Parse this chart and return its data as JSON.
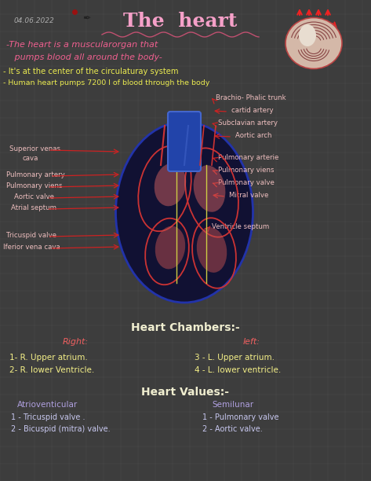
{
  "bg_color": "#3d3d3d",
  "grid_color": "#4a4a4a",
  "title": "The  heart",
  "date": "04.06.2022",
  "title_color": "#f5a0c8",
  "title_fontsize": 18,
  "pink_color": "#f06090",
  "yellow_color": "#eaea50",
  "red_color": "#cc2222",
  "light_pink": "#f0c0c0",
  "lavender": "#b0a0e0",
  "intro_line1": "-The heart is a muscularorgan that",
  "intro_line2": "   pumps blood all around the body-",
  "intro_line3": "- It's at the center of the circulaturay system",
  "intro_line4": "- Human heart pumps 7200 l of blood through the body",
  "chambers_title": "Heart Chambers:-",
  "chambers_right_label": "Right:",
  "chambers_left_label": "left:",
  "valves_title": "Heart Values:-",
  "valves_left_label": "Atrioventicular",
  "valves_right_label": "Semilunar"
}
